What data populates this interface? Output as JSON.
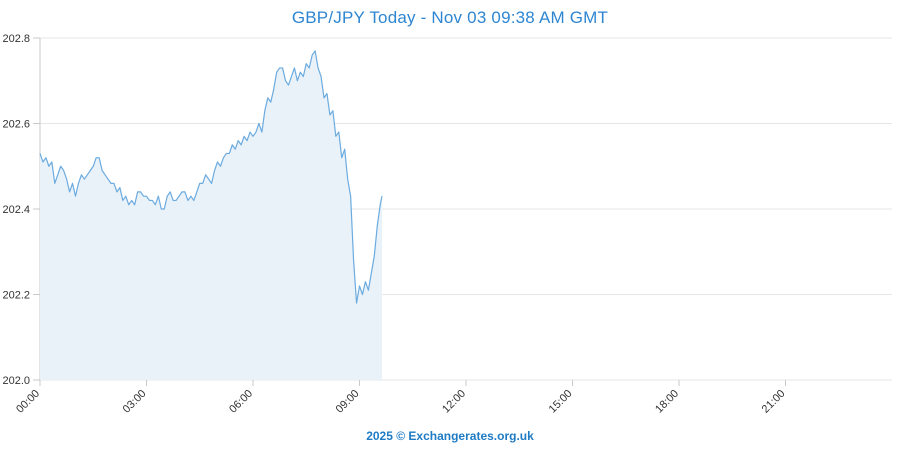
{
  "title": "GBP/JPY Today - Nov 03 09:38 AM GMT",
  "footer": {
    "copyright": "2025 © Exchangerates.org.uk"
  },
  "colors": {
    "title_text": "#2e86d1",
    "footer_text": "#1e7bc4",
    "line": "#6babdf",
    "area_fill": "#e9f1f9",
    "grid": "#e6e6e6",
    "axis": "#c9c9c9",
    "tick_label": "#333333"
  },
  "chart_data": {
    "type": "area",
    "title": "GBP/JPY Today - Nov 03 09:38 AM GMT",
    "xlabel": "",
    "ylabel": "",
    "legend": "none",
    "grid": "horizontal",
    "ylim": [
      202.0,
      202.8
    ],
    "y_ticks": [
      202.8,
      202.6,
      202.4,
      202.2,
      202.0
    ],
    "x_ticks": [
      "00:00",
      "03:00",
      "06:00",
      "09:00",
      "12:00",
      "15:00",
      "18:00",
      "21:00"
    ],
    "x_tick_minutes": [
      0,
      180,
      360,
      540,
      720,
      900,
      1080,
      1260
    ],
    "x_range_minutes": [
      0,
      1440
    ],
    "series": [
      {
        "name": "GBP/JPY",
        "start_time": "00:00",
        "interval_minutes": 5,
        "end_minutes": 578,
        "end_time": "09:38",
        "values": [
          202.53,
          202.51,
          202.52,
          202.5,
          202.51,
          202.46,
          202.48,
          202.5,
          202.49,
          202.47,
          202.44,
          202.46,
          202.43,
          202.46,
          202.48,
          202.47,
          202.48,
          202.49,
          202.5,
          202.52,
          202.52,
          202.49,
          202.48,
          202.47,
          202.46,
          202.46,
          202.44,
          202.45,
          202.42,
          202.43,
          202.41,
          202.42,
          202.41,
          202.44,
          202.44,
          202.43,
          202.43,
          202.42,
          202.42,
          202.41,
          202.43,
          202.4,
          202.4,
          202.43,
          202.44,
          202.42,
          202.42,
          202.43,
          202.44,
          202.44,
          202.42,
          202.43,
          202.42,
          202.44,
          202.46,
          202.46,
          202.48,
          202.47,
          202.46,
          202.49,
          202.51,
          202.5,
          202.52,
          202.53,
          202.53,
          202.55,
          202.54,
          202.56,
          202.55,
          202.57,
          202.56,
          202.58,
          202.57,
          202.58,
          202.6,
          202.58,
          202.63,
          202.66,
          202.65,
          202.68,
          202.72,
          202.73,
          202.73,
          202.7,
          202.69,
          202.71,
          202.73,
          202.7,
          202.72,
          202.71,
          202.74,
          202.73,
          202.76,
          202.77,
          202.73,
          202.71,
          202.66,
          202.67,
          202.62,
          202.63,
          202.57,
          202.58,
          202.52,
          202.54,
          202.47,
          202.43,
          202.28,
          202.18,
          202.22,
          202.2,
          202.23,
          202.21,
          202.25,
          202.29,
          202.36,
          202.41,
          202.43
        ]
      }
    ]
  }
}
